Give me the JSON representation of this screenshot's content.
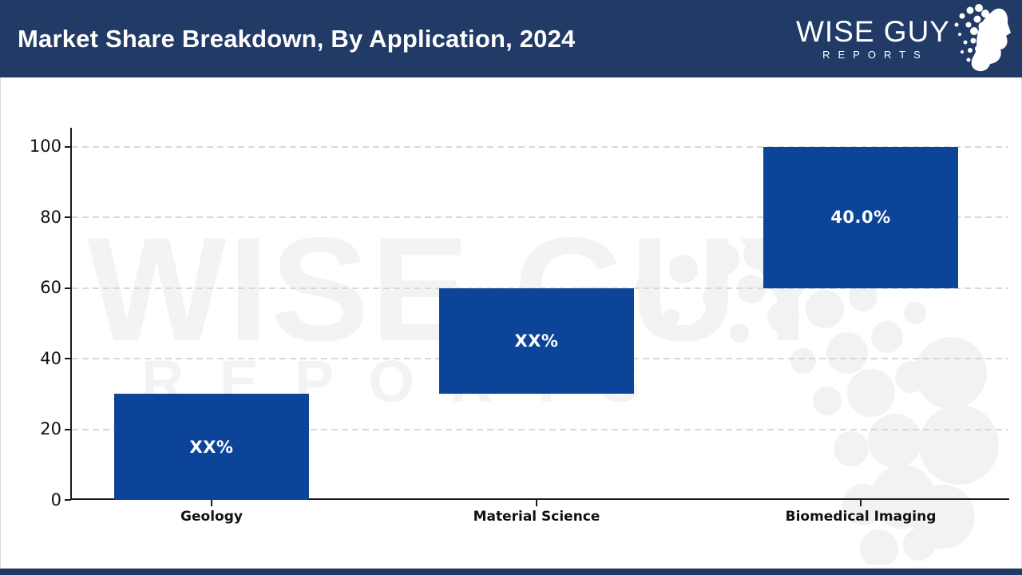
{
  "header": {
    "title": "Market Share Breakdown, By Application, 2024",
    "logo": {
      "name": "WISE GUY",
      "subtitle": "REPORTS"
    },
    "bg_color": "#213a66"
  },
  "watermark": {
    "line1": "WISE GUY",
    "line2": "R E P O R T S"
  },
  "chart_data": {
    "type": "bar",
    "variant": "floating-step-bars",
    "title": "Market Share Breakdown, By Application, 2024",
    "categories": [
      "Geology",
      "Material Science",
      "Biomedical Imaging"
    ],
    "series": [
      {
        "name": "Market Share",
        "segments": [
          {
            "category": "Geology",
            "start": 0,
            "end": 30,
            "label": "XX%"
          },
          {
            "category": "Material Science",
            "start": 30,
            "end": 60,
            "label": "XX%"
          },
          {
            "category": "Biomedical Imaging",
            "start": 60,
            "end": 100,
            "label": "40.0%"
          }
        ]
      }
    ],
    "xlabel": "",
    "ylabel": "",
    "y_ticks": [
      0,
      20,
      40,
      60,
      80,
      100
    ],
    "ylim": [
      0,
      105
    ],
    "grid": "horizontal-dashed",
    "legend": "none",
    "bar_color": "#0b4499",
    "bar_label_color": "#ffffff",
    "axis_color": "#1a1a1a",
    "gridline_color": "#d8d8d8"
  }
}
